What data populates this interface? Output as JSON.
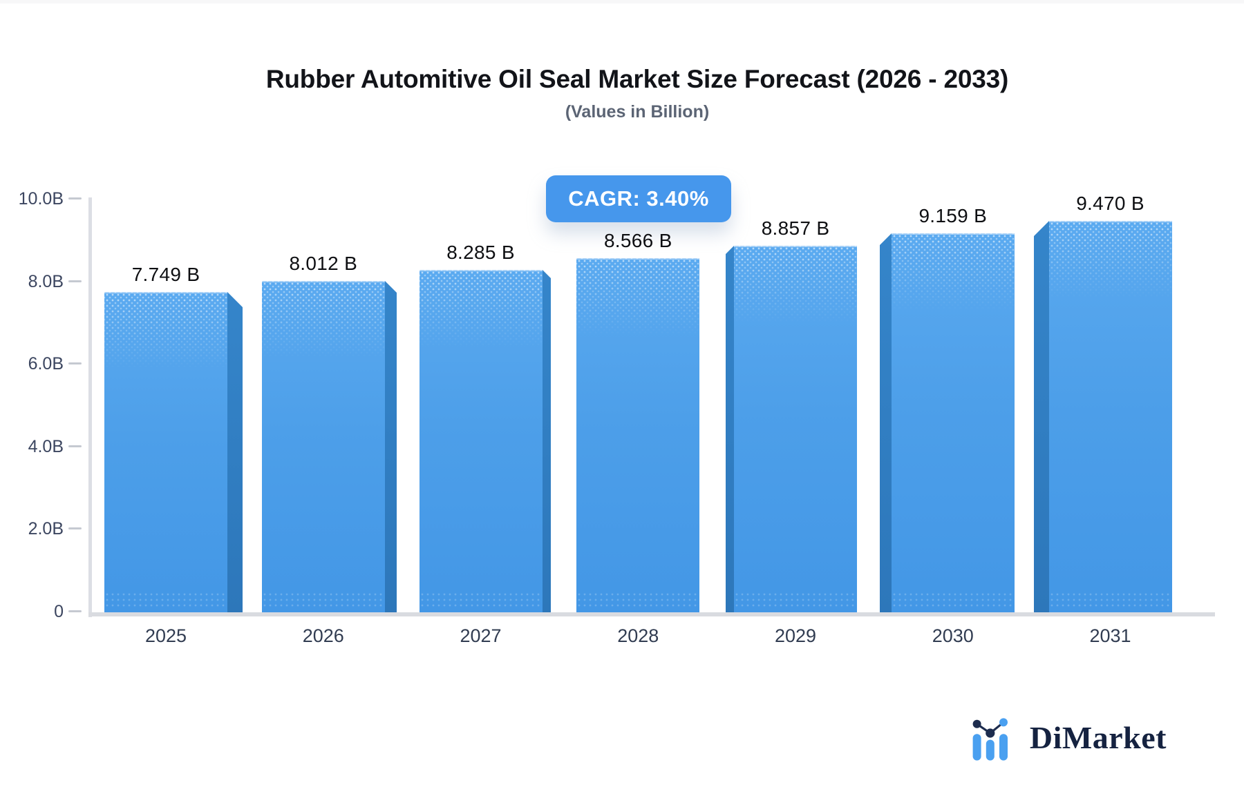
{
  "header": {
    "title": "Rubber Automitive Oil Seal Market Size Forecast (2026 - 2033)",
    "subtitle": "(Values in Billion)"
  },
  "cagr_badge": {
    "label": "CAGR: 3.40%",
    "background": "#4697ec",
    "text_color": "#ffffff"
  },
  "chart_data": {
    "type": "bar",
    "style": "3d-perspective",
    "title": "Rubber Automitive Oil Seal Market Size Forecast (2026 - 2033)",
    "subtitle": "(Values in Billion)",
    "annotation": "CAGR: 3.40%",
    "categories": [
      "2025",
      "2026",
      "2027",
      "2028",
      "2029",
      "2030",
      "2031"
    ],
    "values": [
      7.749,
      8.012,
      8.285,
      8.566,
      8.857,
      9.159,
      9.47
    ],
    "value_labels": [
      "7.749 B",
      "8.012 B",
      "8.285 B",
      "8.566 B",
      "8.857 B",
      "9.159 B",
      "9.470 B"
    ],
    "xlabel": "",
    "ylabel": "",
    "ylim": [
      0,
      10
    ],
    "yticks": [
      {
        "label": "10.0B",
        "value": 10
      },
      {
        "label": "8.0B",
        "value": 8
      },
      {
        "label": "6.0B",
        "value": 6
      },
      {
        "label": "4.0B",
        "value": 4
      },
      {
        "label": "2.0B",
        "value": 2
      },
      {
        "label": "0",
        "value": 0
      }
    ],
    "grid": false,
    "legend": false,
    "bar_color": "#4a9ee9",
    "bar_side_color": "#2e7abd"
  },
  "branding": {
    "name": "DiMarket",
    "icon": "dimarket-bar-chart-logo-icon",
    "text_color": "#152240",
    "accent": "#4aa0f0"
  }
}
